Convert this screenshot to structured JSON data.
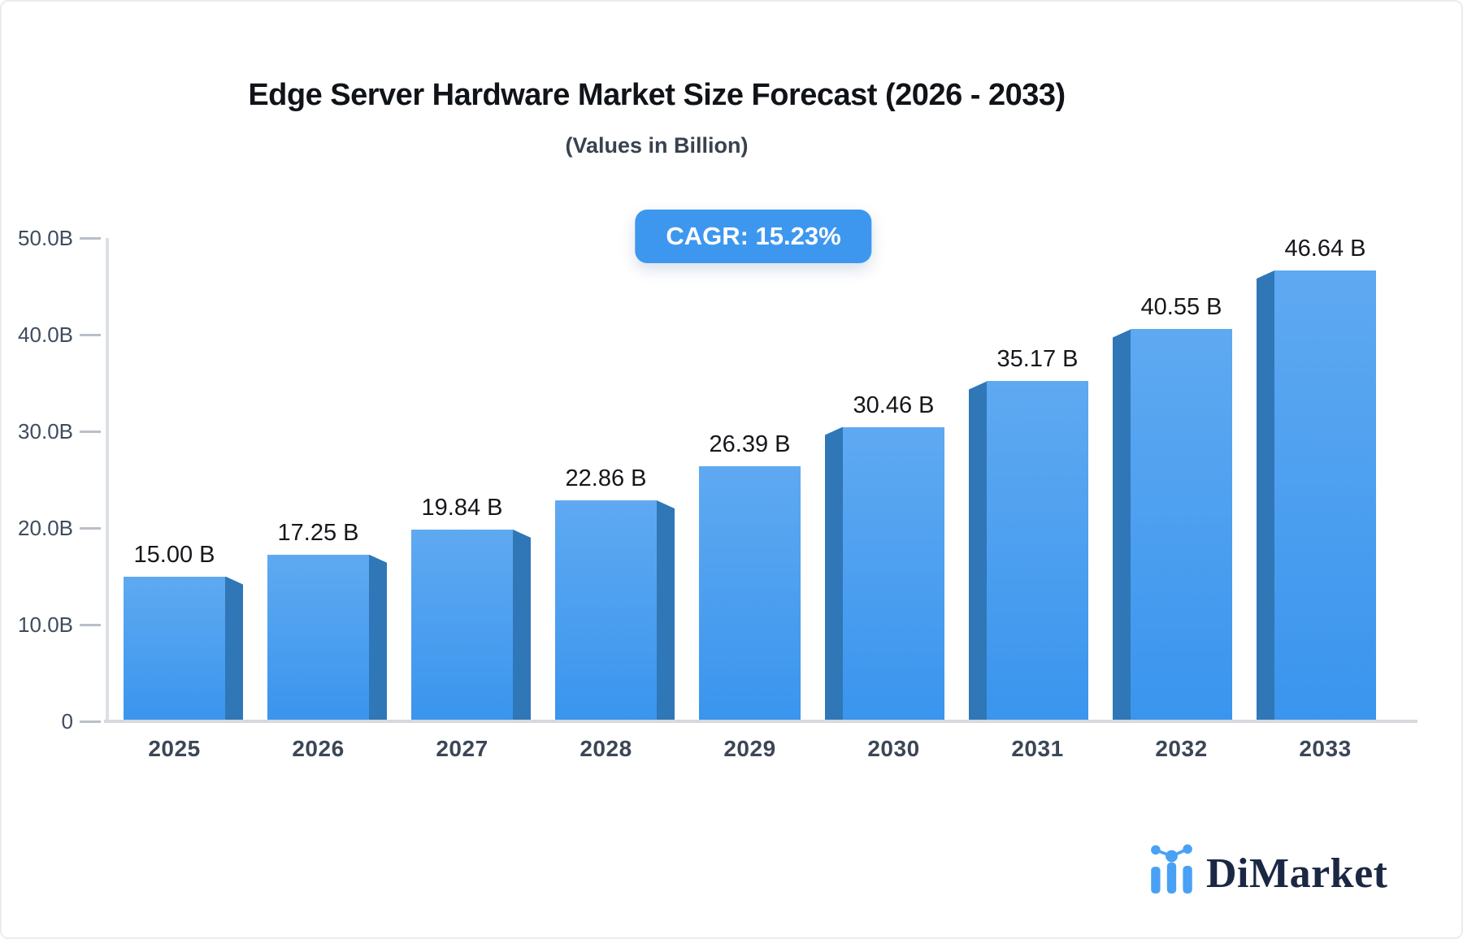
{
  "header": {
    "title": "Edge Server Hardware Market Size Forecast (2026 - 2033)",
    "subtitle": "(Values in Billion)"
  },
  "badge": {
    "label": "CAGR: 15.23%",
    "bg_color": "#3e97ef",
    "text_color": "#ffffff"
  },
  "chart_data": {
    "type": "bar",
    "title": "Edge Server Hardware Market Size Forecast (2026 - 2033)",
    "subtitle": "(Values in Billion)",
    "categories": [
      "2025",
      "2026",
      "2027",
      "2028",
      "2029",
      "2030",
      "2031",
      "2032",
      "2033"
    ],
    "values": [
      15.0,
      17.25,
      19.84,
      22.86,
      26.39,
      30.46,
      35.17,
      40.55,
      46.64
    ],
    "value_labels": [
      "15.00 B",
      "17.25 B",
      "19.84 B",
      "22.86 B",
      "26.39 B",
      "30.46 B",
      "35.17 B",
      "40.55 B",
      "46.64 B"
    ],
    "ylim": [
      0,
      50
    ],
    "ytick_values": [
      0,
      10,
      20,
      30,
      40,
      50
    ],
    "ytick_labels": [
      "0",
      "10.0B",
      "20.0B",
      "30.0B",
      "40.0B",
      "50.0B"
    ],
    "xlabel": "",
    "ylabel": "",
    "grid": false,
    "legend": null,
    "style_3d": true,
    "bar_color_top": "#5fa9f1",
    "bar_color_bottom": "#3a95ee",
    "bar_side_color": "#2f77b7"
  },
  "logo": {
    "text": "DiMarket",
    "icon": "mini-bar-chart-icon",
    "icon_color": "#49a1f5",
    "text_color": "#1b2844"
  }
}
